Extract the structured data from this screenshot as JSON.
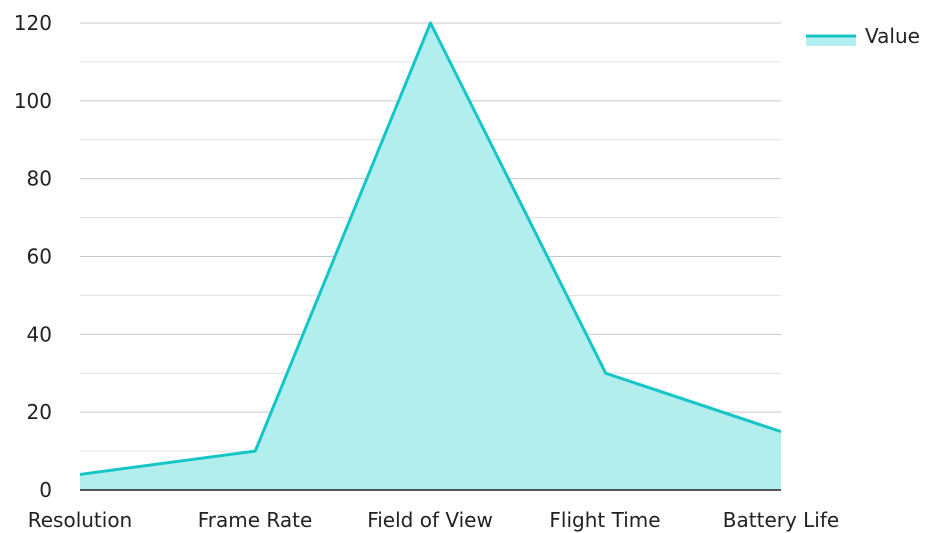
{
  "chart_data": {
    "type": "area",
    "title": "",
    "xlabel": "",
    "ylabel": "",
    "categories": [
      "Resolution",
      "Frame Rate",
      "Field of View",
      "Flight Time",
      "Battery Life"
    ],
    "series": [
      {
        "name": "Value",
        "values": [
          4,
          10,
          120,
          30,
          15
        ]
      }
    ],
    "ylim": [
      0,
      120
    ],
    "yticks": [
      0,
      20,
      40,
      60,
      80,
      100,
      120
    ],
    "grid": true,
    "legend": "top-right",
    "colors": {
      "line": "#16c6c6",
      "fill": "#b2eeee",
      "grid": "#d0d0d0",
      "axis": "#222222"
    }
  }
}
